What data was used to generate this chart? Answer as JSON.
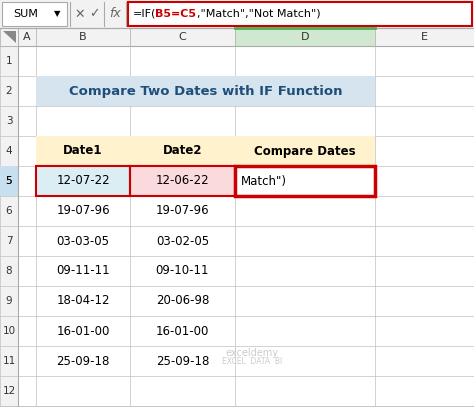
{
  "sum_box_text": "SUM",
  "formula_prefix": "=IF(",
  "formula_highlight": "B5=C5",
  "formula_suffix": ",\"Match\",\"Not Match\")",
  "title": "Compare Two Dates with IF Function",
  "title_color": "#1F4E79",
  "title_bg": "#D6E4F0",
  "headers": [
    "Date1",
    "Date2",
    "Compare Dates"
  ],
  "header_bg": "#FFF2CC",
  "rows": [
    [
      "12-07-22",
      "12-06-22",
      "Match\")"
    ],
    [
      "19-07-96",
      "19-07-96",
      ""
    ],
    [
      "03-03-05",
      "03-02-05",
      ""
    ],
    [
      "09-11-11",
      "09-10-11",
      ""
    ],
    [
      "18-04-12",
      "20-06-98",
      ""
    ],
    [
      "16-01-00",
      "16-01-00",
      ""
    ],
    [
      "25-09-18",
      "25-09-18",
      ""
    ]
  ],
  "row_labels": [
    "1",
    "2",
    "3",
    "4",
    "5",
    "6",
    "7",
    "8",
    "9",
    "10",
    "11",
    "12"
  ],
  "col_labels": [
    "A",
    "B",
    "C",
    "D",
    "E"
  ],
  "bg_color": "#FFFFFF",
  "grid_color": "#C0C0C0",
  "toolbar_bg": "#F2F2F2",
  "formula_bar_bg": "#FFFFFF",
  "formula_bar_border": "#CC0000",
  "row5_date1_bg": "#DAEEF3",
  "row5_date2_bg": "#FADADD",
  "row5_border": "#CC0000",
  "col_d_header_bg": "#C8E6C9",
  "row5_num_bg": "#C8DFF0",
  "watermark_line1": "exceldemy",
  "watermark_line2": "EXCEL  DATA  BI",
  "arrow_color": "#CC0000"
}
